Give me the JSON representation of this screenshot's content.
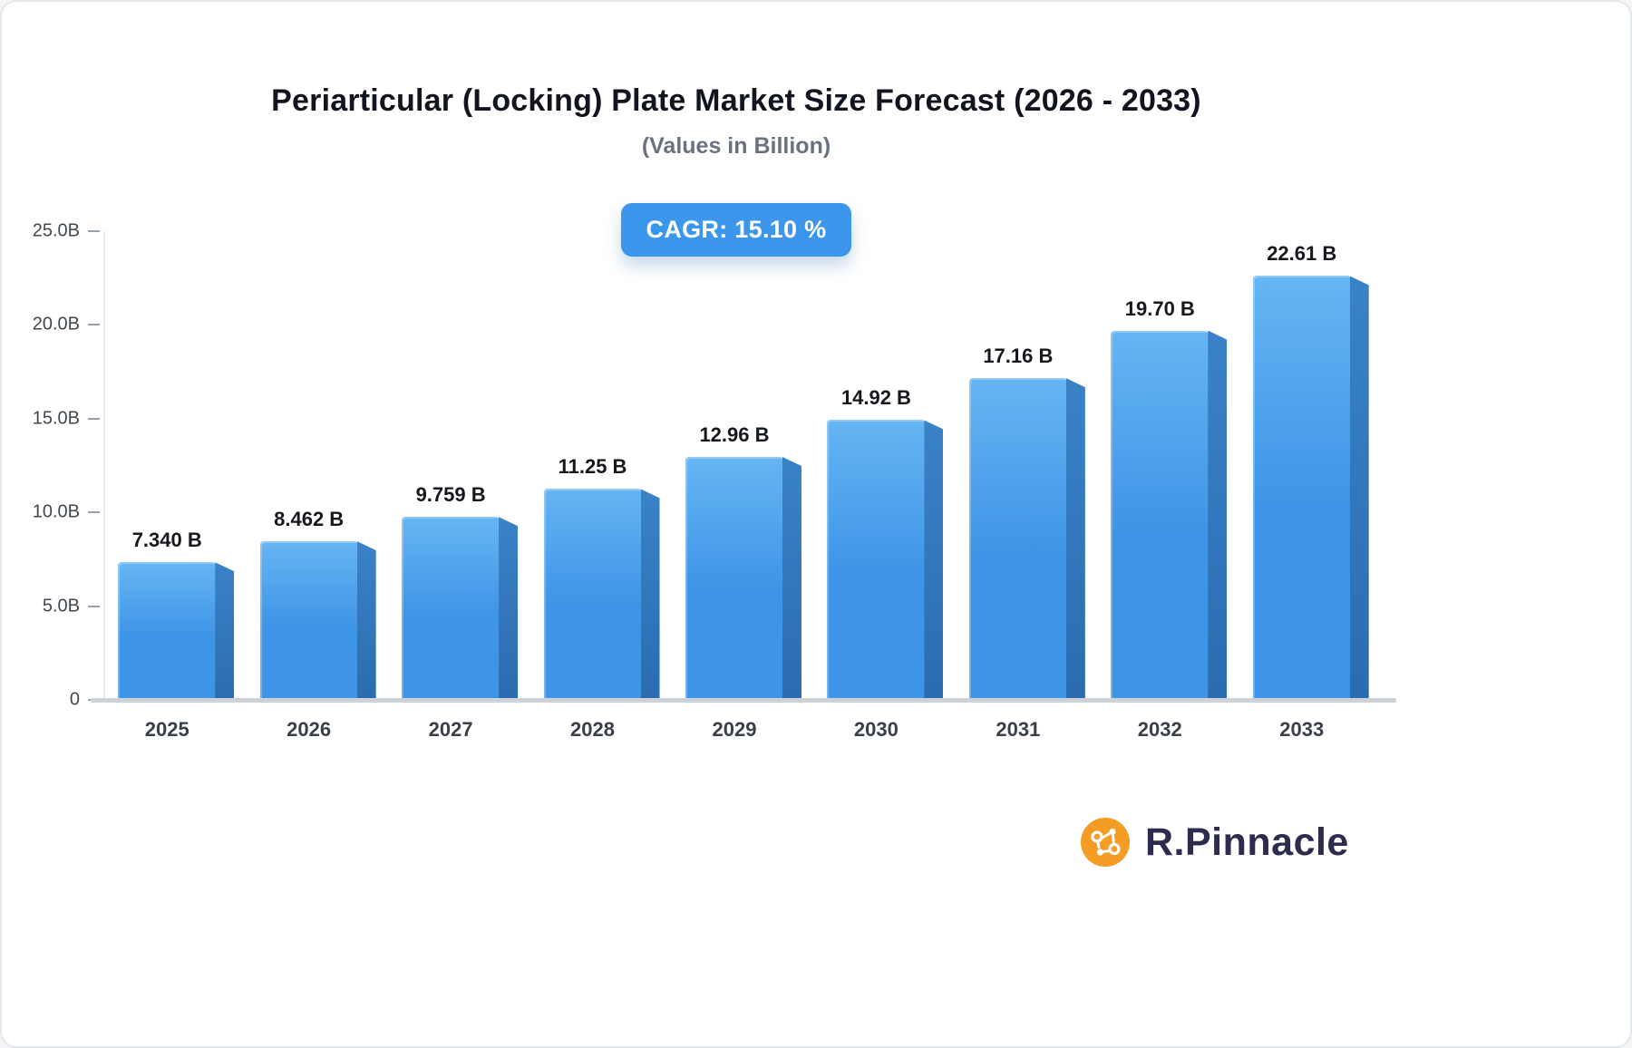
{
  "chart_data": {
    "type": "bar",
    "title": "Periarticular (Locking) Plate Market Size Forecast (2026 - 2033)",
    "subtitle": "(Values in Billion)",
    "cagr_label": "CAGR: 15.10 %",
    "categories": [
      "2025",
      "2026",
      "2027",
      "2028",
      "2029",
      "2030",
      "2031",
      "2032",
      "2033"
    ],
    "values": [
      7.34,
      8.462,
      9.759,
      11.25,
      12.96,
      14.92,
      17.16,
      19.7,
      22.61
    ],
    "value_labels": [
      "7.340 B",
      "8.462 B",
      "9.759 B",
      "11.25 B",
      "12.96 B",
      "14.92 B",
      "17.16 B",
      "19.70 B",
      "22.61 B"
    ],
    "ylim": [
      0,
      25
    ],
    "ytick_values": [
      25,
      20,
      15,
      10,
      5,
      0
    ],
    "ytick_labels": [
      "25.0B",
      "20.0B",
      "15.0B",
      "10.0B",
      "5.0B",
      "0"
    ],
    "grid": false,
    "legend": "none",
    "bar_style": "3d-extruded-right"
  },
  "branding": {
    "logo_text": "R.Pinnacle",
    "logo_icon": "network-nodes-icon"
  },
  "colors": {
    "title": "#121420",
    "subtitle": "#6A7280",
    "badge_bg": "#3C96EC",
    "badge_text": "#FFFFFF",
    "bar_front_light": "#66B5F3",
    "bar_front": "#3E94E6",
    "bar_side": "#2B6CB0",
    "axis_line": "#CDD2D8",
    "tick": "#99A1AA",
    "value_label": "#15181D",
    "axis_label": "#3A4049",
    "logo_orange": "#F59C24",
    "logo_text_color": "#2D2B4E"
  }
}
